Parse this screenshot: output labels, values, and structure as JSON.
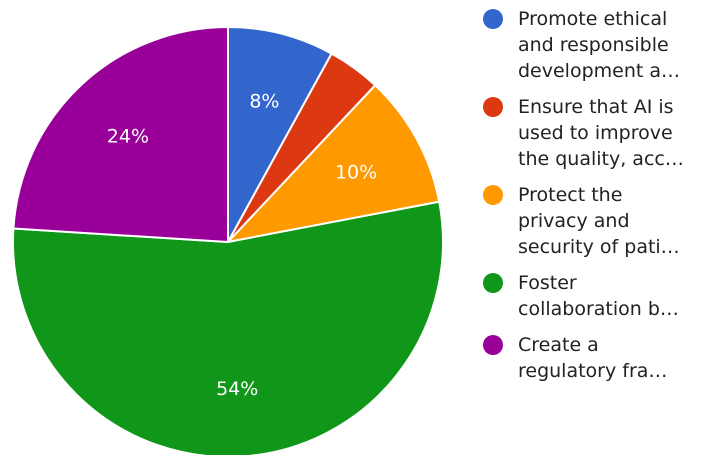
{
  "chart_data": {
    "type": "pie",
    "title": "",
    "slices": [
      {
        "label": "Promote ethical and responsible development a…",
        "legend_text": "Promote ethical\nand responsible\ndevelopment a…",
        "value": 8,
        "data_label": "8%",
        "color": "#3366cc"
      },
      {
        "label": "Ensure that AI is used to improve the quality, acc…",
        "legend_text": "Ensure that AI is\nused to improve\nthe quality, acc…",
        "value": 4,
        "data_label": "",
        "color": "#dc3912"
      },
      {
        "label": "Protect the privacy and security of pati…",
        "legend_text": "Protect the\nprivacy and\nsecurity of pati…",
        "value": 10,
        "data_label": "10%",
        "color": "#ff9900"
      },
      {
        "label": "Foster collaboration b…",
        "legend_text": "Foster\ncollaboration b…",
        "value": 54,
        "data_label": "54%",
        "color": "#109618"
      },
      {
        "label": "Create a regulatory fra…",
        "legend_text": "Create a\nregulatory fra…",
        "value": 24,
        "data_label": "24%",
        "color": "#990099"
      }
    ],
    "legend_position": "right"
  }
}
